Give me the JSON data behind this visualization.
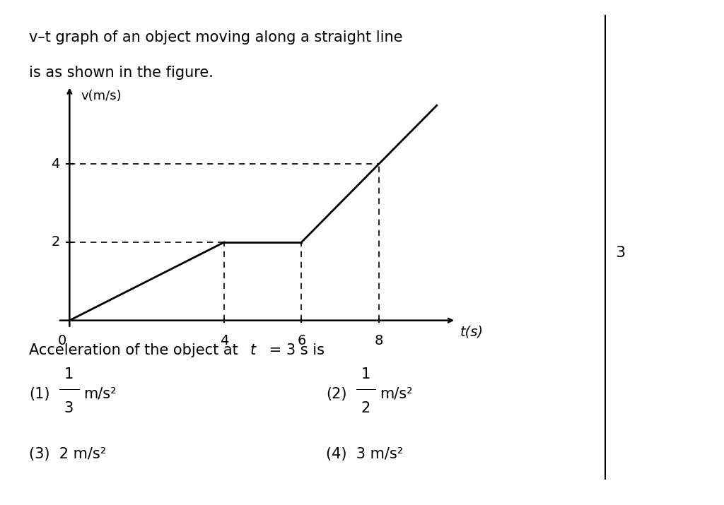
{
  "title_line1": "v–t graph of an object moving along a straight line",
  "title_line2": "is as shown in the figure.",
  "graph_segments": [
    {
      "t": [
        0,
        4
      ],
      "v": [
        0,
        2
      ]
    },
    {
      "t": [
        4,
        6
      ],
      "v": [
        2,
        2
      ]
    },
    {
      "t": [
        6,
        10
      ],
      "v": [
        2,
        6
      ]
    }
  ],
  "dashed_points": [
    {
      "t": 4,
      "v": 2
    },
    {
      "t": 6,
      "v": 2
    },
    {
      "t": 8,
      "v": 4
    }
  ],
  "x_ticks": [
    0,
    4,
    6,
    8
  ],
  "y_ticks": [
    2,
    4
  ],
  "x_label": "t(s)",
  "y_label": "v(m/s)",
  "xlim": [
    0,
    10
  ],
  "ylim": [
    0,
    6
  ],
  "line_color": "#000000",
  "dashed_color": "#000000",
  "background_color": "#ffffff",
  "question_text": "Acceleration of the object at Τ = 3 s is",
  "options": [
    {
      "num": "(1)",
      "expr": "1/3",
      "unit": "m/s²"
    },
    {
      "num": "(2)",
      "expr": "1/2",
      "unit": "m/s²"
    },
    {
      "num": "(3)",
      "expr": "2",
      "unit": "m/s²"
    },
    {
      "num": "(4)",
      "expr": "3",
      "unit": "m/s²"
    }
  ],
  "graph_extend_t": 9.5,
  "graph_extend_v": 5.5
}
